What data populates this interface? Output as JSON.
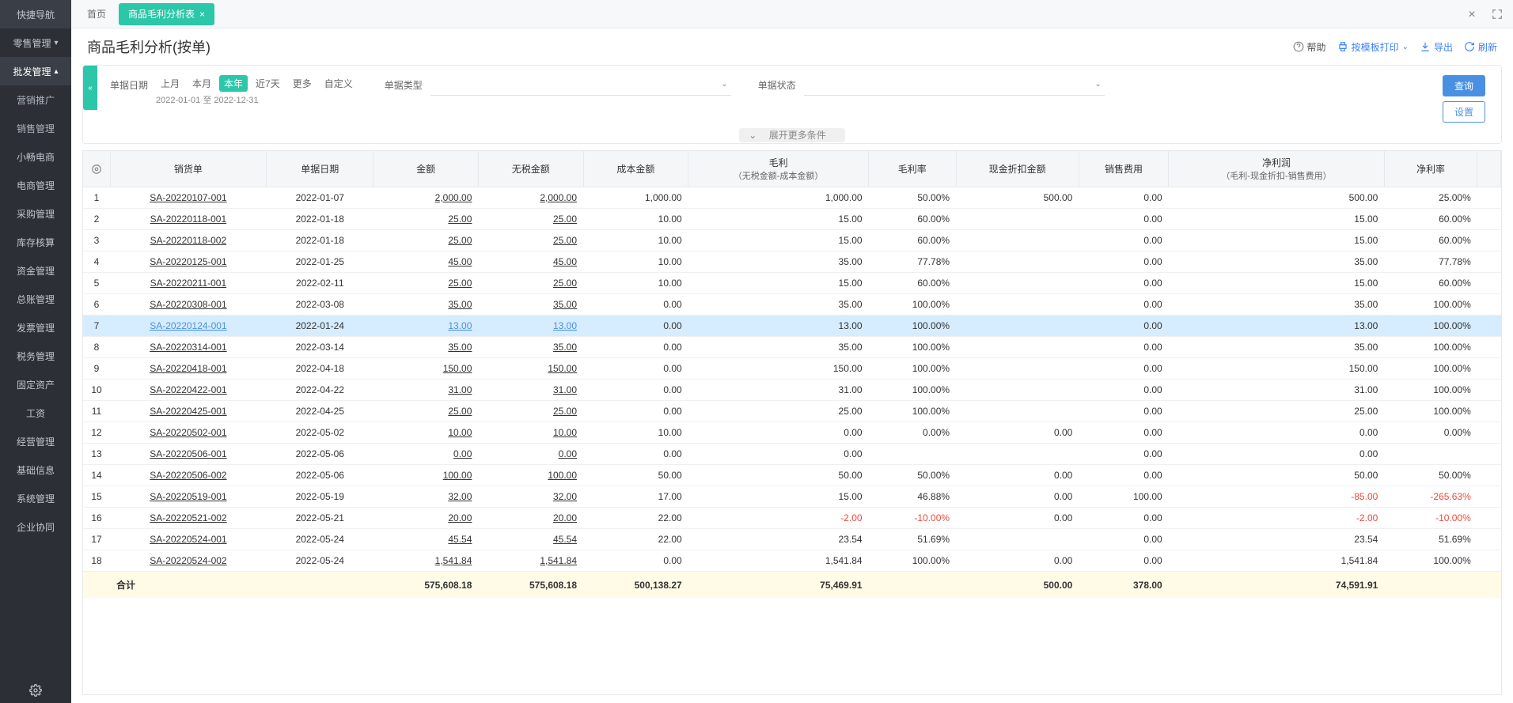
{
  "sidebar": {
    "items": [
      {
        "label": "快捷导航",
        "caret": false
      },
      {
        "label": "零售管理",
        "caret": true,
        "dir": "down"
      },
      {
        "label": "批发管理",
        "caret": true,
        "dir": "up",
        "active": true,
        "subs": [
          "营销推广",
          "销售管理"
        ]
      },
      {
        "label": "小畅电商",
        "caret": false
      },
      {
        "label": "电商管理",
        "caret": false
      },
      {
        "label": "采购管理",
        "caret": false
      },
      {
        "label": "库存核算",
        "caret": false
      },
      {
        "label": "资金管理",
        "caret": false
      },
      {
        "label": "总账管理",
        "caret": false
      },
      {
        "label": "发票管理",
        "caret": false
      },
      {
        "label": "税务管理",
        "caret": false
      },
      {
        "label": "固定资产",
        "caret": false
      },
      {
        "label": "工资",
        "caret": false
      },
      {
        "label": "经营管理",
        "caret": false
      },
      {
        "label": "基础信息",
        "caret": false
      },
      {
        "label": "系统管理",
        "caret": false
      },
      {
        "label": "企业协同",
        "caret": false
      }
    ]
  },
  "tabs": {
    "items": [
      {
        "label": "首页",
        "active": false,
        "closable": false
      },
      {
        "label": "商品毛利分析表",
        "active": true,
        "closable": true
      }
    ]
  },
  "page": {
    "title": "商品毛利分析(按单)"
  },
  "headerActions": {
    "help": "帮助",
    "printTpl": "按模板打印",
    "export": "导出",
    "refresh": "刷新"
  },
  "filters": {
    "dateLabel": "单据日期",
    "dateTabs": [
      "上月",
      "本月",
      "本年",
      "近7天",
      "更多",
      "自定义"
    ],
    "dateActiveIndex": 2,
    "dateRange": "2022-01-01 至 2022-12-31",
    "typeLabel": "单据类型",
    "statusLabel": "单据状态",
    "queryBtn": "查询",
    "settingsBtn": "设置",
    "expand": "展开更多条件"
  },
  "table": {
    "columns": [
      {
        "key": "order",
        "label": "销货单"
      },
      {
        "key": "date",
        "label": "单据日期"
      },
      {
        "key": "amount",
        "label": "金额"
      },
      {
        "key": "notax",
        "label": "无税金额"
      },
      {
        "key": "cost",
        "label": "成本金额"
      },
      {
        "key": "gross",
        "label": "毛利",
        "sub": "（无税金额-成本金额）"
      },
      {
        "key": "grossRate",
        "label": "毛利率"
      },
      {
        "key": "cashDisc",
        "label": "现金折扣金额"
      },
      {
        "key": "saleExp",
        "label": "销售费用"
      },
      {
        "key": "netProfit",
        "label": "净利润",
        "sub": "（毛利-现金折扣-销售费用）"
      },
      {
        "key": "netRate",
        "label": "净利率"
      }
    ],
    "rows": [
      {
        "i": 1,
        "order": "SA-20220107-001",
        "date": "2022-01-07",
        "amount": "2,000.00",
        "notax": "2,000.00",
        "cost": "1,000.00",
        "gross": "1,000.00",
        "grossRate": "50.00%",
        "cashDisc": "500.00",
        "saleExp": "0.00",
        "netProfit": "500.00",
        "netRate": "25.00%"
      },
      {
        "i": 2,
        "order": "SA-20220118-001",
        "date": "2022-01-18",
        "amount": "25.00",
        "notax": "25.00",
        "cost": "10.00",
        "gross": "15.00",
        "grossRate": "60.00%",
        "cashDisc": "",
        "saleExp": "0.00",
        "netProfit": "15.00",
        "netRate": "60.00%"
      },
      {
        "i": 3,
        "order": "SA-20220118-002",
        "date": "2022-01-18",
        "amount": "25.00",
        "notax": "25.00",
        "cost": "10.00",
        "gross": "15.00",
        "grossRate": "60.00%",
        "cashDisc": "",
        "saleExp": "0.00",
        "netProfit": "15.00",
        "netRate": "60.00%"
      },
      {
        "i": 4,
        "order": "SA-20220125-001",
        "date": "2022-01-25",
        "amount": "45.00",
        "notax": "45.00",
        "cost": "10.00",
        "gross": "35.00",
        "grossRate": "77.78%",
        "cashDisc": "",
        "saleExp": "0.00",
        "netProfit": "35.00",
        "netRate": "77.78%"
      },
      {
        "i": 5,
        "order": "SA-20220211-001",
        "date": "2022-02-11",
        "amount": "25.00",
        "notax": "25.00",
        "cost": "10.00",
        "gross": "15.00",
        "grossRate": "60.00%",
        "cashDisc": "",
        "saleExp": "0.00",
        "netProfit": "15.00",
        "netRate": "60.00%"
      },
      {
        "i": 6,
        "order": "SA-20220308-001",
        "date": "2022-03-08",
        "amount": "35.00",
        "notax": "35.00",
        "cost": "0.00",
        "gross": "35.00",
        "grossRate": "100.00%",
        "cashDisc": "",
        "saleExp": "0.00",
        "netProfit": "35.00",
        "netRate": "100.00%"
      },
      {
        "i": 7,
        "order": "SA-20220124-001",
        "date": "2022-01-24",
        "amount": "13.00",
        "notax": "13.00",
        "cost": "0.00",
        "gross": "13.00",
        "grossRate": "100.00%",
        "cashDisc": "",
        "saleExp": "0.00",
        "netProfit": "13.00",
        "netRate": "100.00%",
        "hl": true
      },
      {
        "i": 8,
        "order": "SA-20220314-001",
        "date": "2022-03-14",
        "amount": "35.00",
        "notax": "35.00",
        "cost": "0.00",
        "gross": "35.00",
        "grossRate": "100.00%",
        "cashDisc": "",
        "saleExp": "0.00",
        "netProfit": "35.00",
        "netRate": "100.00%"
      },
      {
        "i": 9,
        "order": "SA-20220418-001",
        "date": "2022-04-18",
        "amount": "150.00",
        "notax": "150.00",
        "cost": "0.00",
        "gross": "150.00",
        "grossRate": "100.00%",
        "cashDisc": "",
        "saleExp": "0.00",
        "netProfit": "150.00",
        "netRate": "100.00%"
      },
      {
        "i": 10,
        "order": "SA-20220422-001",
        "date": "2022-04-22",
        "amount": "31.00",
        "notax": "31.00",
        "cost": "0.00",
        "gross": "31.00",
        "grossRate": "100.00%",
        "cashDisc": "",
        "saleExp": "0.00",
        "netProfit": "31.00",
        "netRate": "100.00%"
      },
      {
        "i": 11,
        "order": "SA-20220425-001",
        "date": "2022-04-25",
        "amount": "25.00",
        "notax": "25.00",
        "cost": "0.00",
        "gross": "25.00",
        "grossRate": "100.00%",
        "cashDisc": "",
        "saleExp": "0.00",
        "netProfit": "25.00",
        "netRate": "100.00%"
      },
      {
        "i": 12,
        "order": "SA-20220502-001",
        "date": "2022-05-02",
        "amount": "10.00",
        "notax": "10.00",
        "cost": "10.00",
        "gross": "0.00",
        "grossRate": "0.00%",
        "cashDisc": "0.00",
        "saleExp": "0.00",
        "netProfit": "0.00",
        "netRate": "0.00%"
      },
      {
        "i": 13,
        "order": "SA-20220506-001",
        "date": "2022-05-06",
        "amount": "0.00",
        "notax": "0.00",
        "cost": "0.00",
        "gross": "0.00",
        "grossRate": "",
        "cashDisc": "",
        "saleExp": "0.00",
        "netProfit": "0.00",
        "netRate": ""
      },
      {
        "i": 14,
        "order": "SA-20220506-002",
        "date": "2022-05-06",
        "amount": "100.00",
        "notax": "100.00",
        "cost": "50.00",
        "gross": "50.00",
        "grossRate": "50.00%",
        "cashDisc": "0.00",
        "saleExp": "0.00",
        "netProfit": "50.00",
        "netRate": "50.00%"
      },
      {
        "i": 15,
        "order": "SA-20220519-001",
        "date": "2022-05-19",
        "amount": "32.00",
        "notax": "32.00",
        "cost": "17.00",
        "gross": "15.00",
        "grossRate": "46.88%",
        "cashDisc": "0.00",
        "saleExp": "100.00",
        "netProfit": "-85.00",
        "netRate": "-265.63%",
        "neg": true
      },
      {
        "i": 16,
        "order": "SA-20220521-002",
        "date": "2022-05-21",
        "amount": "20.00",
        "notax": "20.00",
        "cost": "22.00",
        "gross": "-2.00",
        "grossRate": "-10.00%",
        "cashDisc": "0.00",
        "saleExp": "0.00",
        "netProfit": "-2.00",
        "netRate": "-10.00%",
        "neg": true,
        "grossNeg": true
      },
      {
        "i": 17,
        "order": "SA-20220524-001",
        "date": "2022-05-24",
        "amount": "45.54",
        "notax": "45.54",
        "cost": "22.00",
        "gross": "23.54",
        "grossRate": "51.69%",
        "cashDisc": "",
        "saleExp": "0.00",
        "netProfit": "23.54",
        "netRate": "51.69%"
      },
      {
        "i": 18,
        "order": "SA-20220524-002",
        "date": "2022-05-24",
        "amount": "1,541.84",
        "notax": "1,541.84",
        "cost": "0.00",
        "gross": "1,541.84",
        "grossRate": "100.00%",
        "cashDisc": "0.00",
        "saleExp": "0.00",
        "netProfit": "1,541.84",
        "netRate": "100.00%"
      }
    ],
    "total": {
      "label": "合计",
      "amount": "575,608.18",
      "notax": "575,608.18",
      "cost": "500,138.27",
      "gross": "75,469.91",
      "cashDisc": "500.00",
      "saleExp": "378.00",
      "netProfit": "74,591.91"
    }
  }
}
